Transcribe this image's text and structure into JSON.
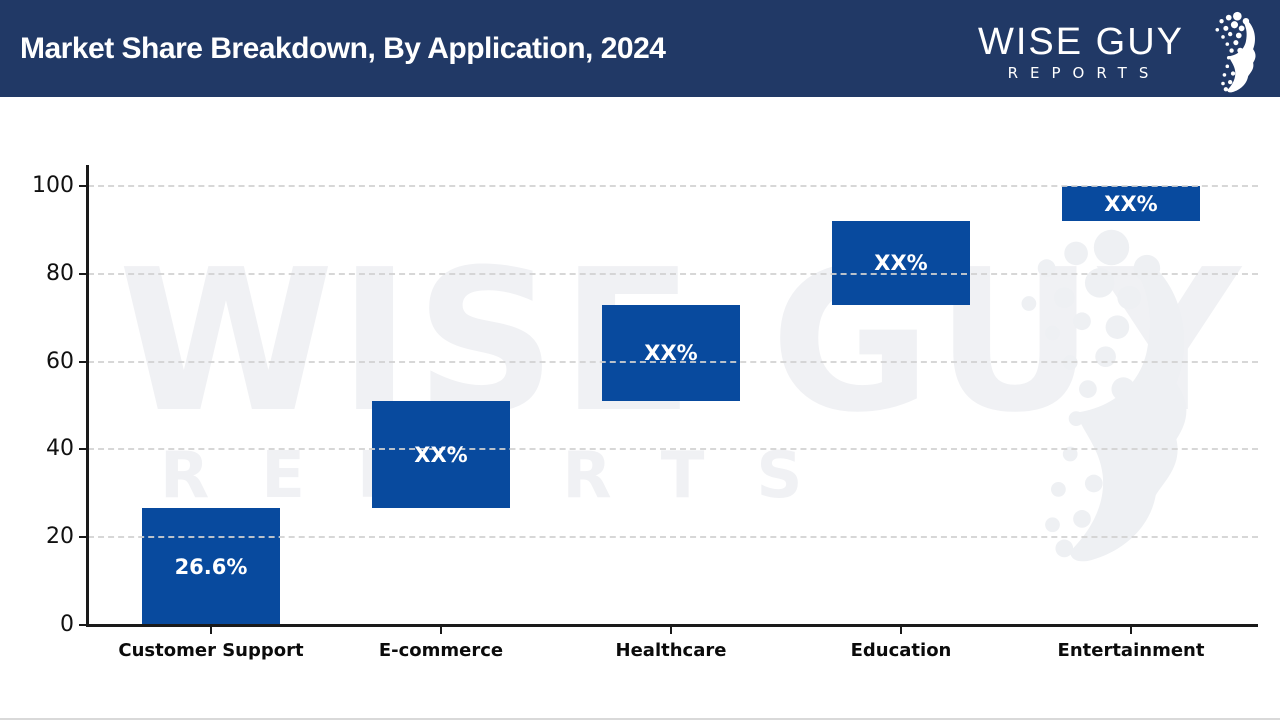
{
  "header": {
    "title": "Market Share Breakdown, By Application, 2024",
    "brand": {
      "line1": "WISE GUY",
      "line2": "REPORTS"
    }
  },
  "watermark": {
    "line1": "WISE GUY",
    "line2": "REPORTS"
  },
  "colors": {
    "header_bg": "#213966",
    "bar": "#084a9e",
    "grid": "#d2d2d2",
    "watermark": "#f0f1f4",
    "axis": "#1a1a1a"
  },
  "chart_data": {
    "type": "bar",
    "variant": "waterfall",
    "title": "Market Share Breakdown, By Application, 2024",
    "categories": [
      "Customer Support",
      "E-commerce",
      "Healthcare",
      "Education",
      "Entertainment"
    ],
    "series": [
      {
        "name": "Market Share %",
        "segments": [
          {
            "category": "Customer Support",
            "start": 0,
            "end": 26.6,
            "label": "26.6%"
          },
          {
            "category": "E-commerce",
            "start": 26.6,
            "end": 51,
            "label": "XX%"
          },
          {
            "category": "Healthcare",
            "start": 51,
            "end": 73,
            "label": "XX%"
          },
          {
            "category": "Education",
            "start": 73,
            "end": 92,
            "label": "XX%"
          },
          {
            "category": "Entertainment",
            "start": 92,
            "end": 100,
            "label": "XX%"
          }
        ]
      }
    ],
    "masked_value_label": "XX%",
    "yticks": [
      0,
      20,
      40,
      60,
      80,
      100
    ],
    "ylim": [
      0,
      104
    ],
    "xlabel": "",
    "ylabel": "",
    "grid": "horizontal-dashed",
    "legend": "none"
  }
}
